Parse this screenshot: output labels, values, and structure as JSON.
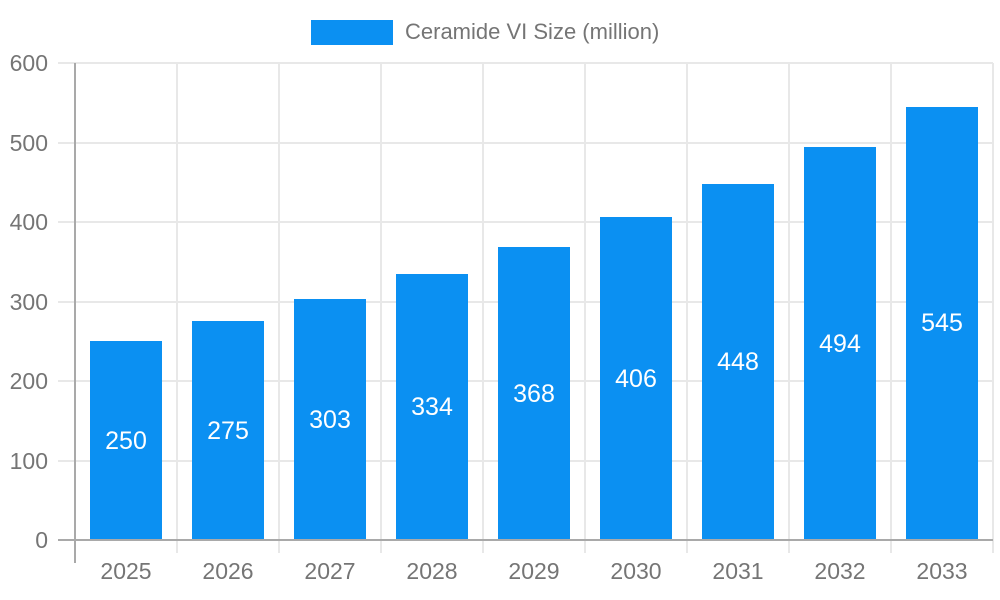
{
  "legend": {
    "label": "Ceramide VI Size (million)"
  },
  "chart_data": {
    "type": "bar",
    "title": "",
    "categories": [
      "2025",
      "2026",
      "2027",
      "2028",
      "2029",
      "2030",
      "2031",
      "2032",
      "2033"
    ],
    "series": [
      {
        "name": "Ceramide VI Size (million)",
        "values": [
          250,
          275,
          303,
          334,
          368,
          406,
          448,
          494,
          545
        ]
      }
    ],
    "xlabel": "",
    "ylabel": "",
    "ylim": [
      0,
      600
    ],
    "yticks": [
      0,
      100,
      200,
      300,
      400,
      500,
      600
    ],
    "grid": true,
    "legend_position": "top",
    "bar_value_labels": "centered-white",
    "colors": {
      "bar": "#0B90F2",
      "bar_label_text": "#FFFFFF",
      "axis_text": "#757575",
      "grid_line": "#E8E8E8",
      "axis_line": "#A9A9A9",
      "background": "#FFFFFF"
    }
  }
}
